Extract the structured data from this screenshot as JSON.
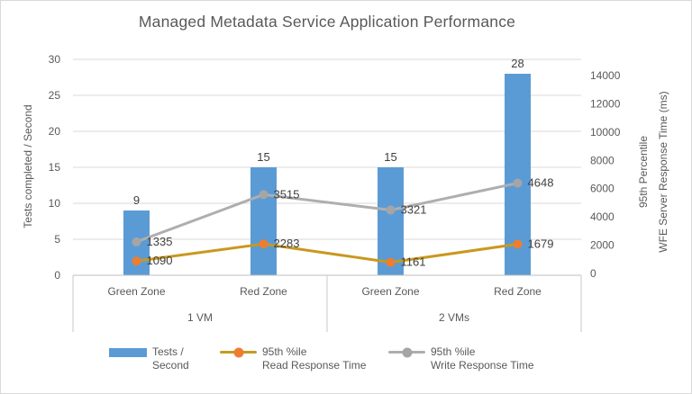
{
  "chart_data": {
    "type": "bar+line combo",
    "title": "Managed Metadata Service Application Performance",
    "categories": [
      "Green Zone",
      "Red Zone",
      "Green Zone",
      "Red Zone"
    ],
    "category_groups": [
      {
        "label": "1 VM",
        "span": 2
      },
      {
        "label": "2 VMs",
        "span": 2
      }
    ],
    "series": [
      {
        "name": "Tests / Second",
        "type": "bar",
        "axis": "primary",
        "color": "#5B9BD5",
        "values": [
          9,
          15,
          15,
          28
        ]
      },
      {
        "name": "95th %ile Read Response Time",
        "type": "line",
        "axis": "secondary",
        "line_color": "#C8991F",
        "marker_color": "#ED7D31",
        "values": [
          1090,
          2283,
          1161,
          1679
        ]
      },
      {
        "name": "95th %ile Write Response Time",
        "type": "line",
        "axis": "secondary",
        "line_color": "#AEAEAE",
        "marker_color": "#A5A5A5",
        "values": [
          1335,
          3515,
          3321,
          4648
        ]
      }
    ],
    "y1_axis": {
      "label": "Tests completed / Second",
      "min": 0,
      "max": 30,
      "step": 5,
      "ticks": [
        "0",
        "5",
        "10",
        "15",
        "20",
        "25",
        "30"
      ]
    },
    "y2_axis": {
      "label_line1": "95th Percentile",
      "label_line2": "WFE Server Response Time (ms)",
      "min": 0,
      "max": 14000,
      "step": 2000,
      "ticks": [
        "0",
        "2000",
        "4000",
        "6000",
        "8000",
        "10000",
        "12000",
        "14000"
      ]
    },
    "grid": true,
    "data_labels_visible": true,
    "legend_position": "bottom",
    "legend": [
      {
        "swatch": "bar",
        "line1": "Tests /",
        "line2": "Second"
      },
      {
        "swatch": "line",
        "line1": "95th %ile",
        "line2": "Read Response Time"
      },
      {
        "swatch": "line",
        "line1": "95th %ile",
        "line2": "Write Response Time"
      }
    ]
  },
  "colors": {
    "title_text": "#595959",
    "axis_text": "#595959",
    "data_label_text": "#404040",
    "gridline": "#D9D9D9",
    "axis_line": "#BFBFBF",
    "category_tick_line": "#C9C9C9"
  }
}
